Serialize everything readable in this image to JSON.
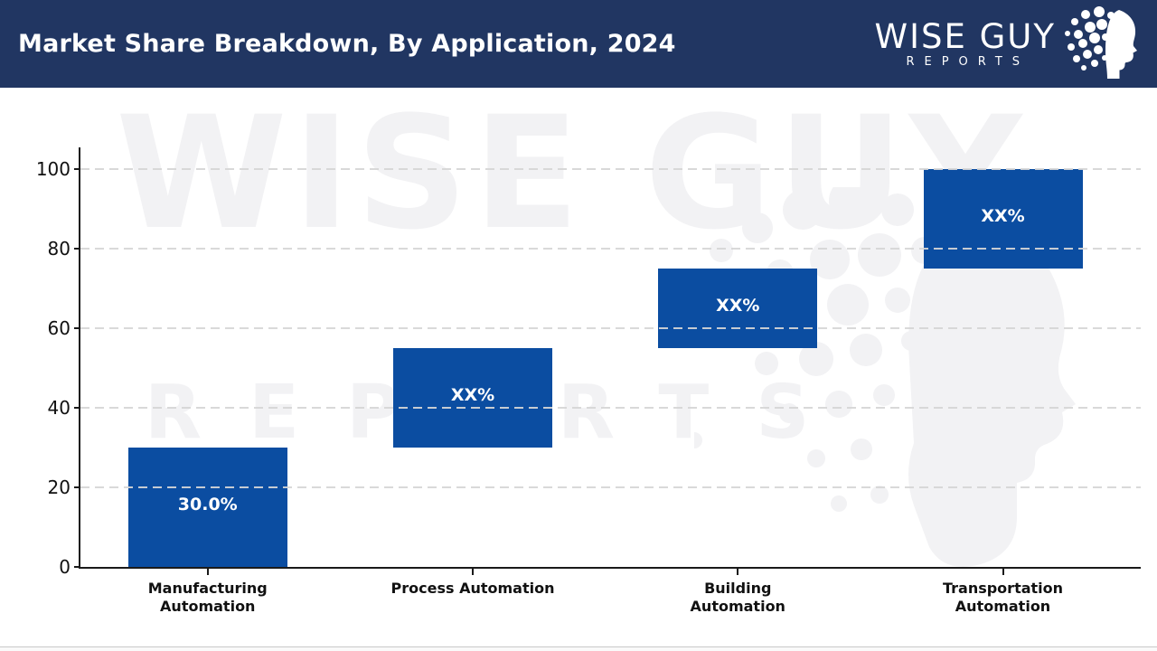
{
  "header": {
    "title": "Market Share Breakdown, By Application, 2024",
    "background_color": "#213662",
    "logo": {
      "wordmark": "WISE GUY",
      "subtitle": "REPORTS"
    }
  },
  "watermark": {
    "line1": "WISE GUY",
    "line2": "REPORTS"
  },
  "chart_data": {
    "type": "bar",
    "subtype": "floating-waterfall-bars",
    "title": "Market Share Breakdown, By Application, 2024",
    "categories": [
      "Manufacturing Automation",
      "Process Automation",
      "Building Automation",
      "Transportation Automation"
    ],
    "category_lines": [
      [
        "Manufacturing",
        "Automation"
      ],
      [
        "Process Automation"
      ],
      [
        "Building",
        "Automation"
      ],
      [
        "Transportation",
        "Automation"
      ]
    ],
    "series": [
      {
        "name": "Market Share (%)",
        "segments": [
          {
            "category": "Manufacturing Automation",
            "start": 0,
            "end": 30,
            "label": "30.0%"
          },
          {
            "category": "Process Automation",
            "start": 30,
            "end": 55,
            "label": "XX%"
          },
          {
            "category": "Building Automation",
            "start": 55,
            "end": 75,
            "label": "XX%"
          },
          {
            "category": "Transportation Automation",
            "start": 75,
            "end": 100,
            "label": "XX%"
          }
        ]
      }
    ],
    "xlabel": "",
    "ylabel": "",
    "ylim": [
      0,
      105
    ],
    "yticks": [
      0,
      20,
      40,
      60,
      80,
      100
    ],
    "grid": "horizontal-dashed",
    "legend": "none",
    "bar_color": "#0b4da1",
    "bar_label_color": "#ffffff",
    "axis_color": "#1a1a1a",
    "gridline_color": "#d6d6d6",
    "header_color": "#213662"
  }
}
